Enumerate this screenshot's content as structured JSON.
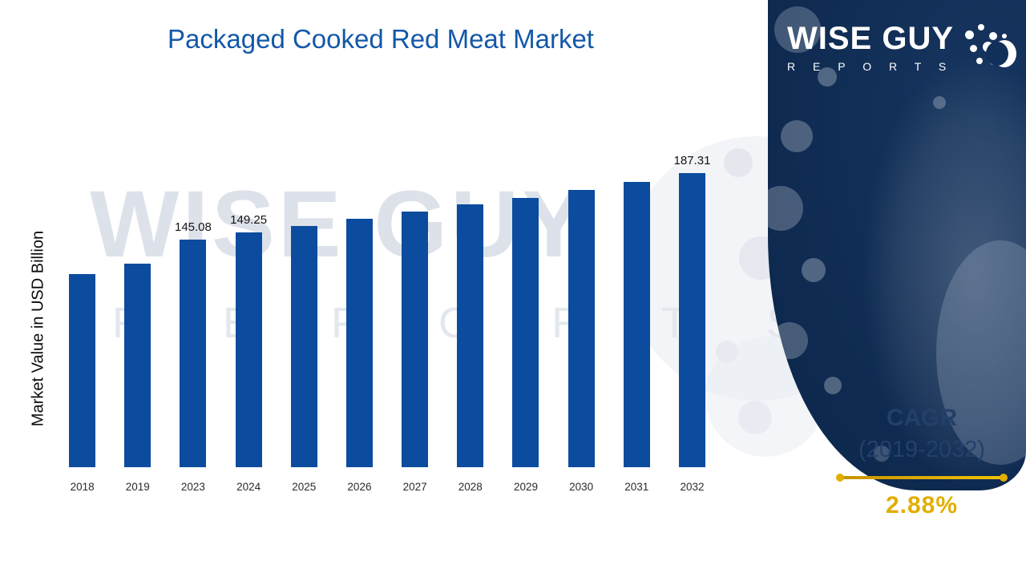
{
  "page": {
    "title": "Packaged Cooked Red Meat Market"
  },
  "logo": {
    "line1": "WISE GUY",
    "line2": "R E P O R T S"
  },
  "watermark": {
    "line1": "WISE GUY",
    "line2": "R E P O R T S"
  },
  "cagr": {
    "label": "CAGR",
    "range": "(2019-2032)",
    "value": "2.88%"
  },
  "chart_data": {
    "type": "bar",
    "title": "Packaged Cooked Red Meat Market",
    "xlabel": "",
    "ylabel": "Market Value in USD Billion",
    "categories": [
      "2018",
      "2019",
      "2023",
      "2024",
      "2025",
      "2026",
      "2027",
      "2028",
      "2029",
      "2030",
      "2031",
      "2032"
    ],
    "values": [
      123.2,
      129.6,
      145.08,
      149.25,
      153.6,
      158.3,
      162.6,
      167.2,
      171.6,
      176.5,
      181.5,
      187.31
    ],
    "data_labels": [
      "",
      "",
      "145.08",
      "149.25",
      "",
      "",
      "",
      "",
      "",
      "",
      "",
      "187.31"
    ],
    "ylim": [
      0,
      200
    ],
    "grid": false,
    "legend": false,
    "bar_color": "#0b4c9e"
  },
  "colors": {
    "title_blue": "#1458a8",
    "bar_blue": "#0b4c9e",
    "navy_bg": "#0f2b52",
    "gold": "#e2ae00",
    "cagr_navy": "#23406b",
    "watermark_gray": "#dde2ea"
  }
}
